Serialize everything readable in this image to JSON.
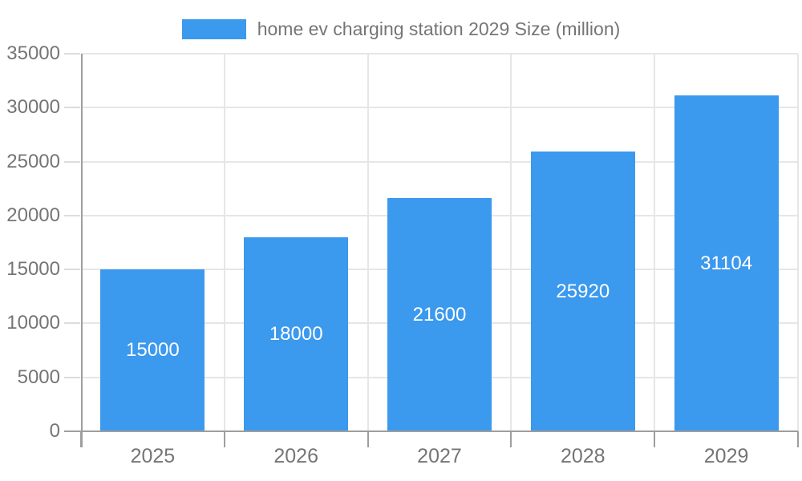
{
  "chart_data": {
    "type": "bar",
    "title": "home ev charging station 2029 Size (million)",
    "categories": [
      "2025",
      "2026",
      "2027",
      "2028",
      "2029"
    ],
    "series": [
      {
        "name": "home ev charging station 2029 Size (million)",
        "values": [
          15000,
          18000,
          21600,
          25920,
          31104
        ]
      }
    ],
    "xlabel": "",
    "ylabel": "",
    "ylim": [
      0,
      35000
    ],
    "ytick_step": 5000,
    "yticks": [
      0,
      5000,
      10000,
      15000,
      20000,
      25000,
      30000,
      35000
    ],
    "grid": true,
    "legend_position": "top-center",
    "bar_color": "#3b99ee",
    "bar_label_color": "#ffffff",
    "axis_color": "#9e9e9e",
    "grid_color": "#e6e6e6",
    "tick_label_color": "#757575",
    "background_color": "#ffffff"
  }
}
